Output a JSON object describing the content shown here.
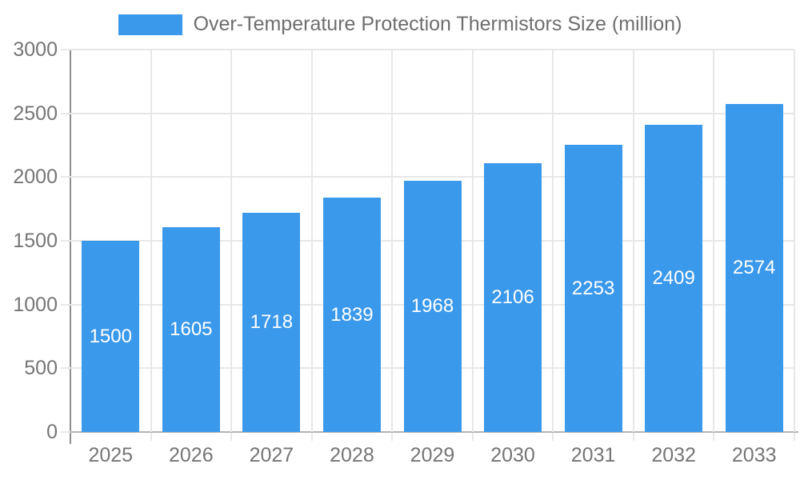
{
  "chart_data": {
    "type": "bar",
    "title": "Over-Temperature Protection Thermistors Size (million)",
    "categories": [
      "2025",
      "2026",
      "2027",
      "2028",
      "2029",
      "2030",
      "2031",
      "2032",
      "2033"
    ],
    "series": [
      {
        "name": "Over-Temperature Protection Thermistors Size (million)",
        "values": [
          1500,
          1605,
          1718,
          1839,
          1968,
          2106,
          2253,
          2409,
          2574
        ]
      }
    ],
    "xlabel": "",
    "ylabel": "",
    "ylim": [
      0,
      3000
    ],
    "yticks": [
      0,
      500,
      1000,
      1500,
      2000,
      2500,
      3000
    ],
    "grid": true,
    "legend_position": "top-center",
    "bar_value_labels": "inside-center",
    "colors": {
      "bar": "#3b99ec",
      "bar_label": "#ffffff",
      "title_text": "#6e6e6e",
      "tick_text": "#757575",
      "gridline": "#e7e7e7",
      "x_axis_line": "#b3b3b3",
      "y_axis_line": "#8f8f8f"
    }
  }
}
